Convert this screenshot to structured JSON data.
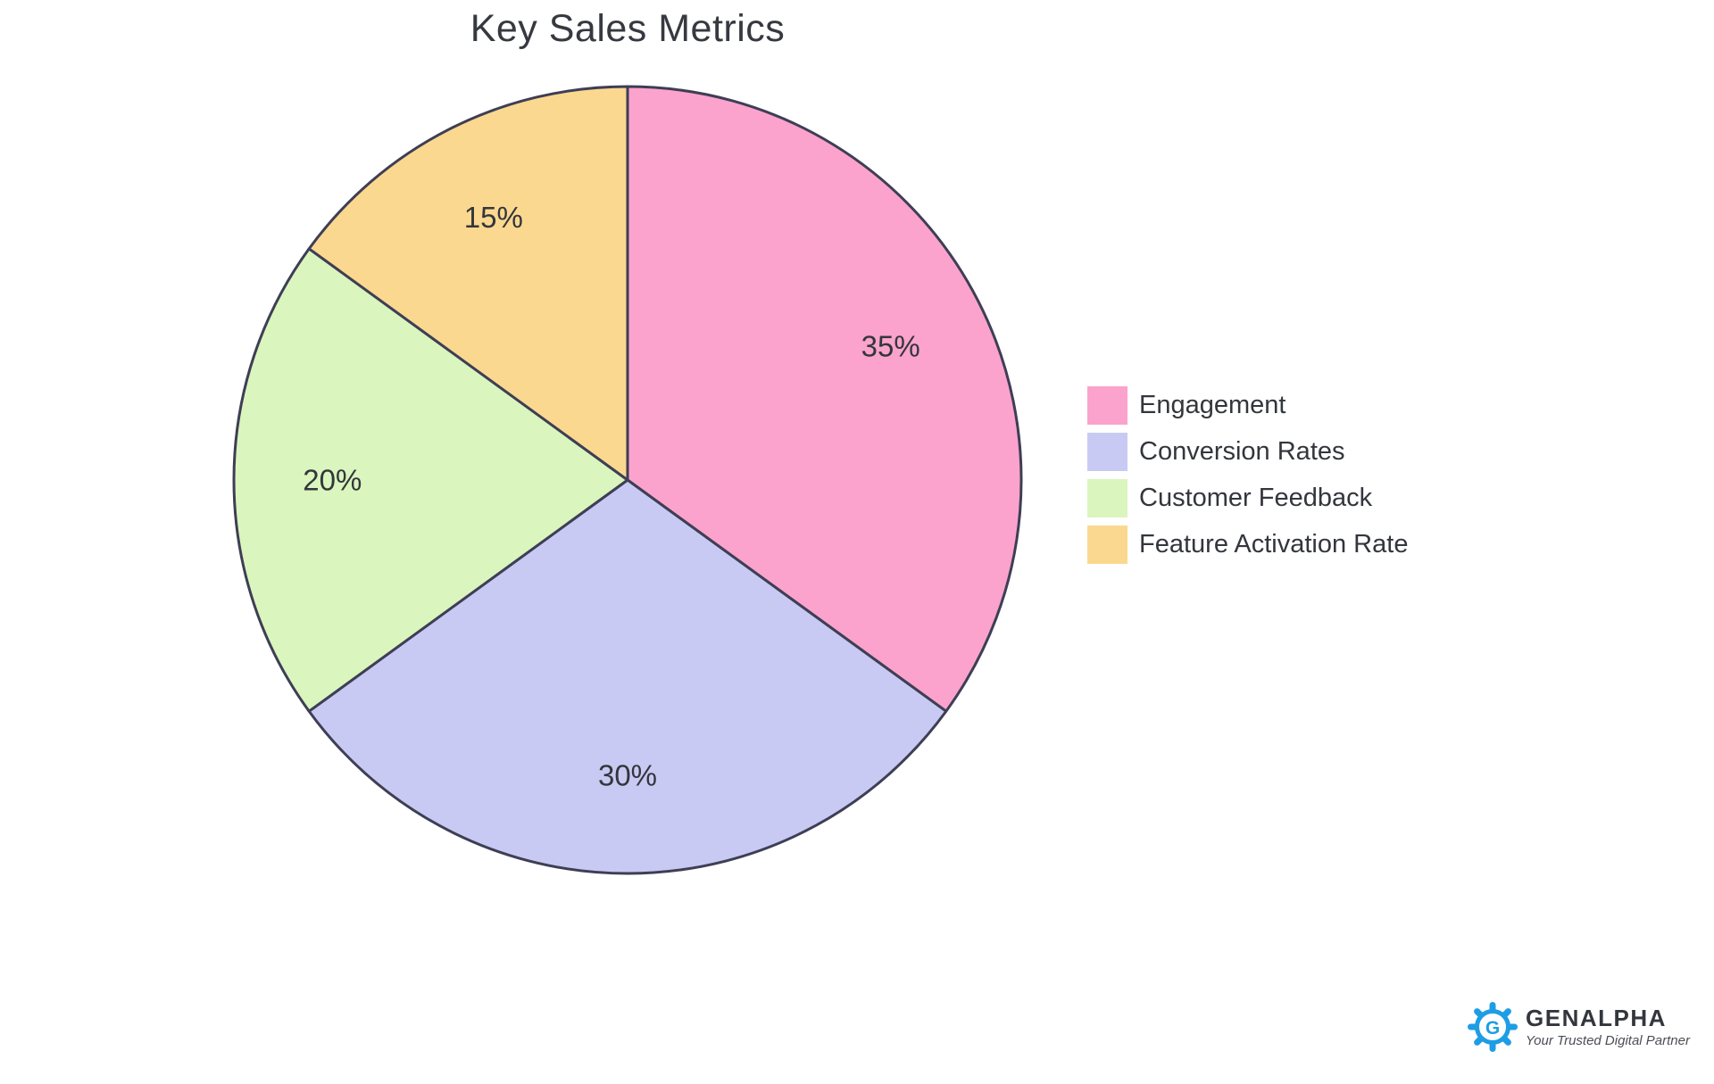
{
  "chart_data": {
    "type": "pie",
    "title": "Key Sales Metrics",
    "categories": [
      "Engagement",
      "Conversion Rates",
      "Customer Feedback",
      "Feature Activation Rate"
    ],
    "values": [
      35,
      30,
      20,
      15
    ],
    "percent_labels": [
      "35%",
      "30%",
      "20%",
      "15%"
    ],
    "colors": [
      "#FBA3CC",
      "#C9CAF3",
      "#DAF5BD",
      "#FBD88F"
    ],
    "slice_border_color": "#3E3E55",
    "percent_label_color": "#33363C",
    "start_angle_deg": 0,
    "direction": "clockwise",
    "legend_position": "right",
    "legend_labels": [
      "Engagement",
      "Conversion Rates",
      "Customer Feedback",
      "Feature Activation Rate"
    ]
  },
  "branding": {
    "name": "GENALPHA",
    "tagline": "Your Trusted Digital Partner",
    "logo_letter": "G",
    "logo_color": "#1E9DE5"
  }
}
